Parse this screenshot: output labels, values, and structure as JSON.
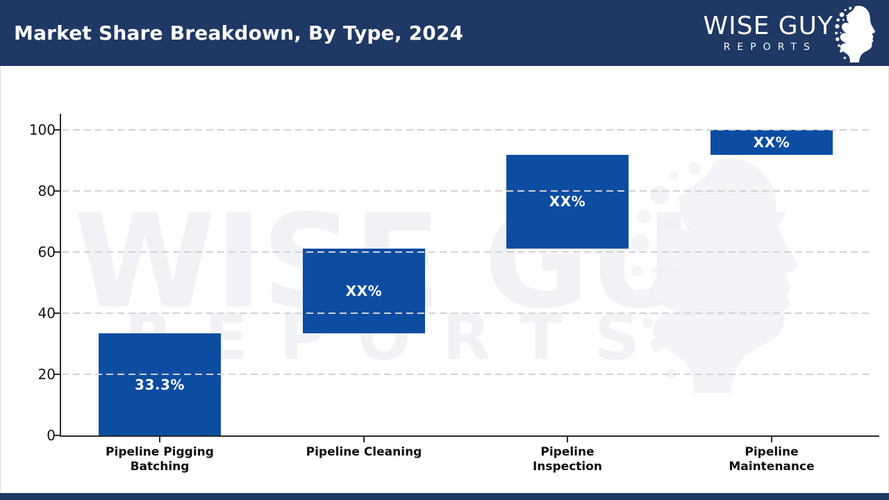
{
  "header": {
    "title": "Market Share Breakdown, By Type, 2024",
    "logo": {
      "brand": "WISE GUY",
      "sub": "REPORTS"
    }
  },
  "watermark": {
    "big": "WISE GUY",
    "small": "REPORTS"
  },
  "colors": {
    "header_bg": "#1f3864",
    "footer_bg": "#1f3864",
    "bar_color": "#0c4da2",
    "bar_label_color": "#ffffff",
    "gridline": "#d2d2d2",
    "watermark": "#f1f2f5"
  },
  "chart_data": {
    "type": "bar",
    "subtype": "floating-waterfall",
    "title": "Market Share Breakdown, By Type, 2024",
    "categories": [
      [
        "Pipeline Pigging",
        "Batching"
      ],
      [
        "Pipeline Cleaning"
      ],
      [
        "Pipeline",
        "Inspection"
      ],
      [
        "Pipeline",
        "Maintenance"
      ]
    ],
    "bars": [
      {
        "category": "Pipeline Pigging Batching",
        "start": 0,
        "end": 33.3,
        "label": "33.3%"
      },
      {
        "category": "Pipeline Cleaning",
        "start": 33.3,
        "end": 61.2,
        "label": "XX%"
      },
      {
        "category": "Pipeline Inspection",
        "start": 61.2,
        "end": 91.8,
        "label": "XX%"
      },
      {
        "category": "Pipeline Maintenance",
        "start": 91.8,
        "end": 100,
        "label": "XX%"
      }
    ],
    "xlabel": "",
    "ylabel": "",
    "ylim": [
      0,
      100
    ],
    "yticks": [
      0,
      20,
      40,
      60,
      80,
      100
    ],
    "grid": "horizontal-dashed",
    "legend": "none"
  }
}
